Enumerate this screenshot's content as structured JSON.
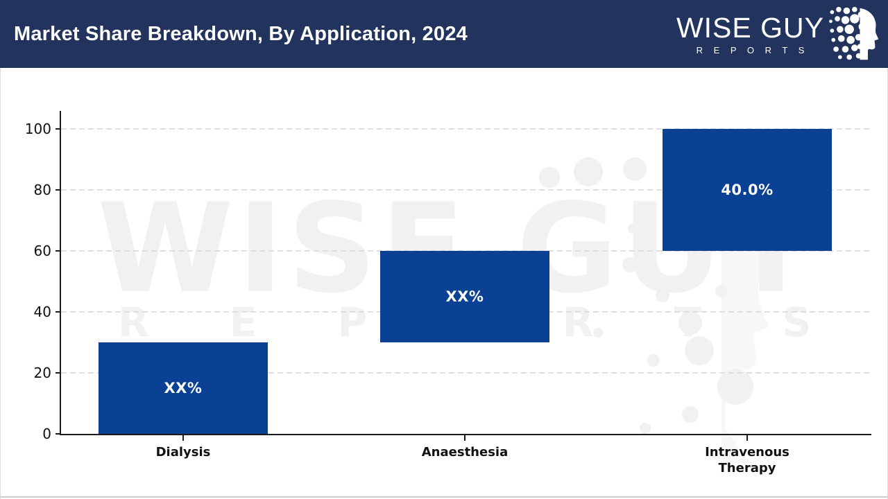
{
  "header": {
    "title": "Market Share Breakdown, By Application, 2024",
    "logo": {
      "wordmark": "WISE GUY",
      "subtext": "R E P O R T S"
    }
  },
  "watermark": {
    "wordmark": "WISE GUY",
    "subtext": "R E P O R T S"
  },
  "chart_data": {
    "type": "bar",
    "subtype": "floating-segment-waterfall",
    "title": "Market Share Breakdown, By Application, 2024",
    "categories": [
      "Dialysis",
      "Anaesthesia",
      "Intravenous Therapy"
    ],
    "segments": [
      {
        "category": "Dialysis",
        "start": 0,
        "end": 30,
        "label": "XX%"
      },
      {
        "category": "Anaesthesia",
        "start": 30,
        "end": 60,
        "label": "XX%"
      },
      {
        "category": "Intravenous Therapy",
        "start": 60,
        "end": 100,
        "label": "40.0%"
      }
    ],
    "xlabel": "",
    "ylabel": "",
    "ylim": [
      0,
      100
    ],
    "yticks": [
      0,
      20,
      40,
      60,
      80,
      100
    ],
    "grid": "dashed-horizontal-lightgray",
    "legend": "none",
    "bar_color": "#0a4195",
    "value_label_color": "#ffffff"
  },
  "colors": {
    "header_bg": "#22335e",
    "header_text": "#ffffff",
    "chart_bg": "#ffffff",
    "bar": "#0a4195",
    "grid": "#dedede",
    "axis": "#1a1a1a",
    "tick_text": "#111111",
    "watermark": "#f1f1f4",
    "bottom_rule": "#cccccc"
  }
}
